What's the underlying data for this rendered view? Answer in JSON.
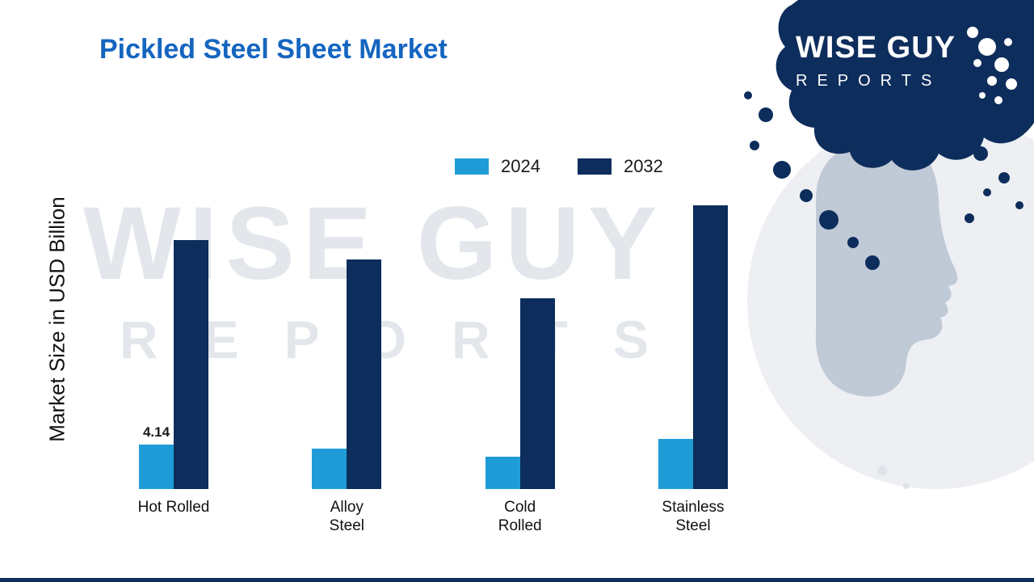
{
  "theme": {
    "title_blue": "#1565c0",
    "navy": "#0d2d5c",
    "light_blue": "#1f9cd8",
    "watermark_gray": "#e3e7ec",
    "circle_gray": "#edeff3",
    "face_gray": "#b4bfce"
  },
  "logo": {
    "line1": "WISE GUY",
    "line2": "REPORTS"
  },
  "watermark": {
    "line1": "WISE GUY",
    "line2": "REPORTS"
  },
  "chart_data": {
    "type": "bar",
    "title": "Pickled Steel Sheet Market",
    "ylabel": "Market Size in USD Billion",
    "xlabel": "",
    "categories": [
      "Hot Rolled",
      "Alloy Steel",
      "Cold Rolled",
      "Stainless Steel"
    ],
    "categories_display": [
      "Hot Rolled",
      "Alloy\nSteel",
      "Cold\nRolled",
      "Stainless\nSteel"
    ],
    "series": [
      {
        "name": "2024",
        "color": "#1f9cd8",
        "values": [
          4.14,
          3.8,
          3.0,
          4.7
        ]
      },
      {
        "name": "2032",
        "color": "#0d2d5c",
        "values": [
          23.2,
          21.4,
          17.8,
          26.4
        ]
      }
    ],
    "data_labels": [
      {
        "series": "2024",
        "category": "Hot Rolled",
        "text": "4.14"
      }
    ],
    "ylim": [
      0,
      28
    ],
    "grid": false,
    "legend_position": "top"
  }
}
